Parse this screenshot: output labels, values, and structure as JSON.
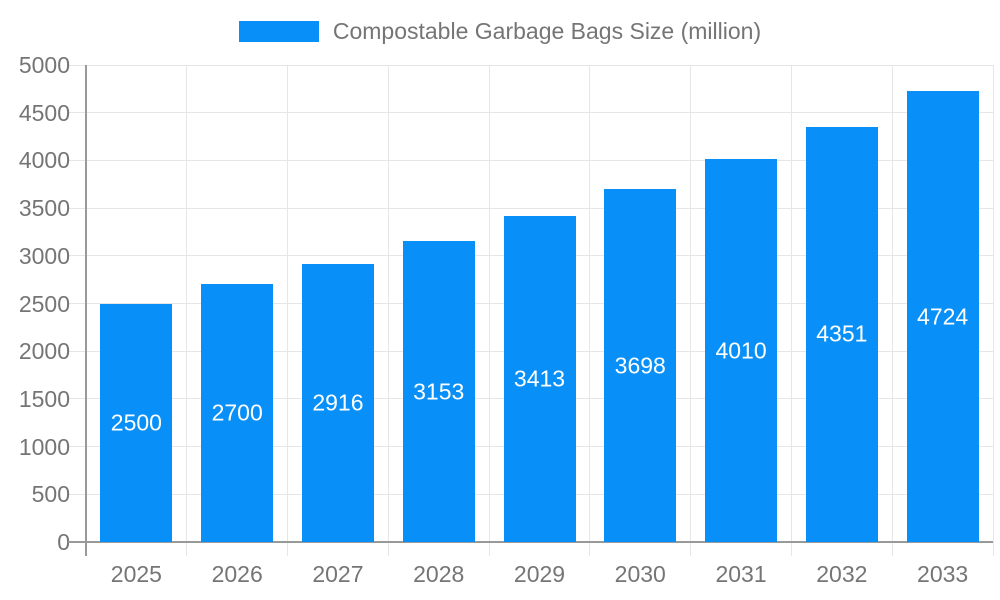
{
  "chart_data": {
    "type": "bar",
    "title": "",
    "legend_label": "Compostable Garbage Bags Size (million)",
    "legend_position": "top",
    "categories": [
      "2025",
      "2026",
      "2027",
      "2028",
      "2029",
      "2030",
      "2031",
      "2032",
      "2033"
    ],
    "values": [
      2500,
      2700,
      2916,
      3153,
      3413,
      3698,
      4010,
      4351,
      4724
    ],
    "xlabel": "",
    "ylabel": "",
    "ylim": [
      0,
      5000
    ],
    "ytick_step": 500,
    "ytick_labels": [
      "0",
      "500",
      "1000",
      "1500",
      "2000",
      "2500",
      "3000",
      "3500",
      "4000",
      "4500",
      "5000"
    ],
    "grid": true,
    "value_labels_position": "center",
    "colors": {
      "bar": "#0990F8",
      "bar_value_label": "#ffffff",
      "axis_text": "#757575",
      "grid_line": "#e6e6e6",
      "axis_line": "#999999",
      "background": "#ffffff"
    }
  }
}
